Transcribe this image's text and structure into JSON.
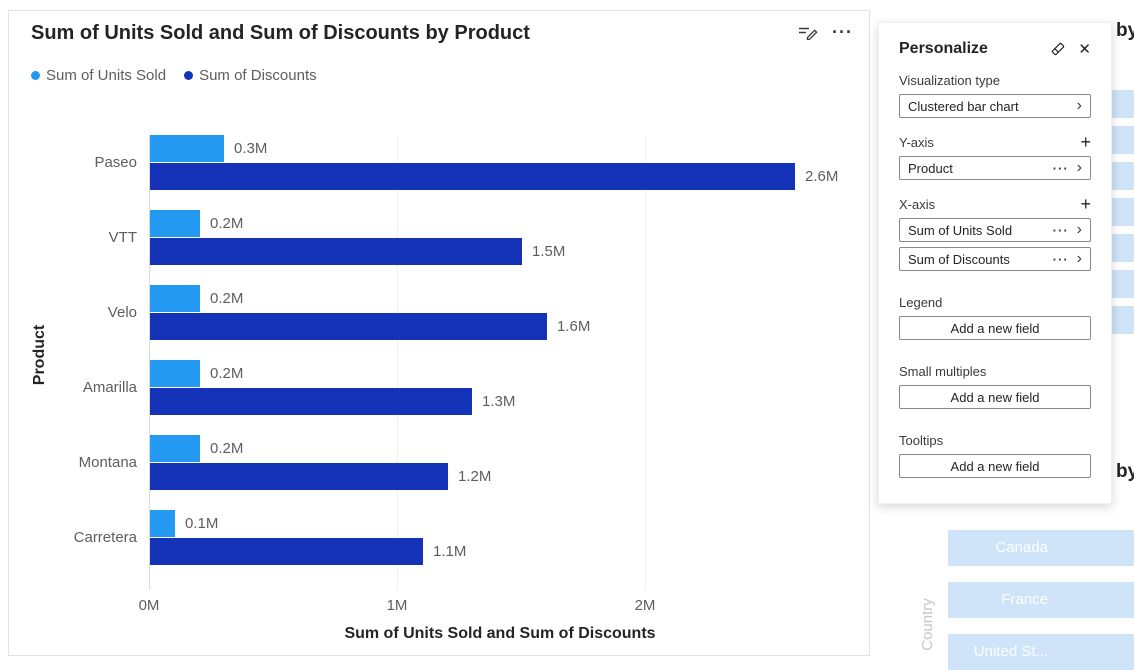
{
  "colors": {
    "units_blue": "#2499F2",
    "discounts_blue": "#1433B8",
    "background_bar_blue": "#CFE4F9",
    "axis_text": "#605E5C",
    "title_text": "#252423"
  },
  "icons": {
    "personalize_visual": "bar-chart-pencil",
    "more_options": "···",
    "eraser": "eraser-shape",
    "close": "✕",
    "add": "+",
    "chevron_right": "›"
  },
  "chart_data": {
    "type": "bar",
    "orientation": "horizontal",
    "title": "Sum of Units Sold and Sum of Discounts by Product",
    "categories": [
      "Paseo",
      "VTT",
      "Velo",
      "Amarilla",
      "Montana",
      "Carretera"
    ],
    "series": [
      {
        "name": "Sum of Units Sold",
        "color": "#2499F2",
        "values": [
          0.3,
          0.2,
          0.2,
          0.2,
          0.2,
          0.1
        ],
        "labels": [
          "0.3M",
          "0.2M",
          "0.2M",
          "0.2M",
          "0.2M",
          "0.1M"
        ]
      },
      {
        "name": "Sum of Discounts",
        "color": "#1433B8",
        "values": [
          2.6,
          1.5,
          1.6,
          1.3,
          1.2,
          1.1
        ],
        "labels": [
          "2.6M",
          "1.5M",
          "1.6M",
          "1.3M",
          "1.2M",
          "1.1M"
        ]
      }
    ],
    "xlabel": "Sum of Units Sold and Sum of Discounts",
    "ylabel": "Product",
    "x_ticks": [
      "0M",
      "1M",
      "2M"
    ],
    "xlim": [
      0,
      2.8
    ],
    "legend_position": "top-left",
    "grid": false
  },
  "personalize": {
    "title": "Personalize",
    "viz_type_label": "Visualization type",
    "viz_type_value": "Clustered bar chart",
    "y_axis_label": "Y-axis",
    "y_axis_fields": [
      "Product"
    ],
    "x_axis_label": "X-axis",
    "x_axis_fields": [
      "Sum of Units Sold",
      "Sum of Discounts"
    ],
    "legend_label": "Legend",
    "small_multiples_label": "Small multiples",
    "tooltips_label": "Tooltips",
    "add_field_label": "Add a new field"
  },
  "background": {
    "top_title_fragment": "by",
    "bottom_title_fragment": "by",
    "country_axis_title": "Country",
    "countries": [
      "Canada",
      "France",
      "United St..."
    ],
    "top_bar_tops": [
      90,
      126,
      162,
      198,
      234,
      270,
      306
    ]
  }
}
